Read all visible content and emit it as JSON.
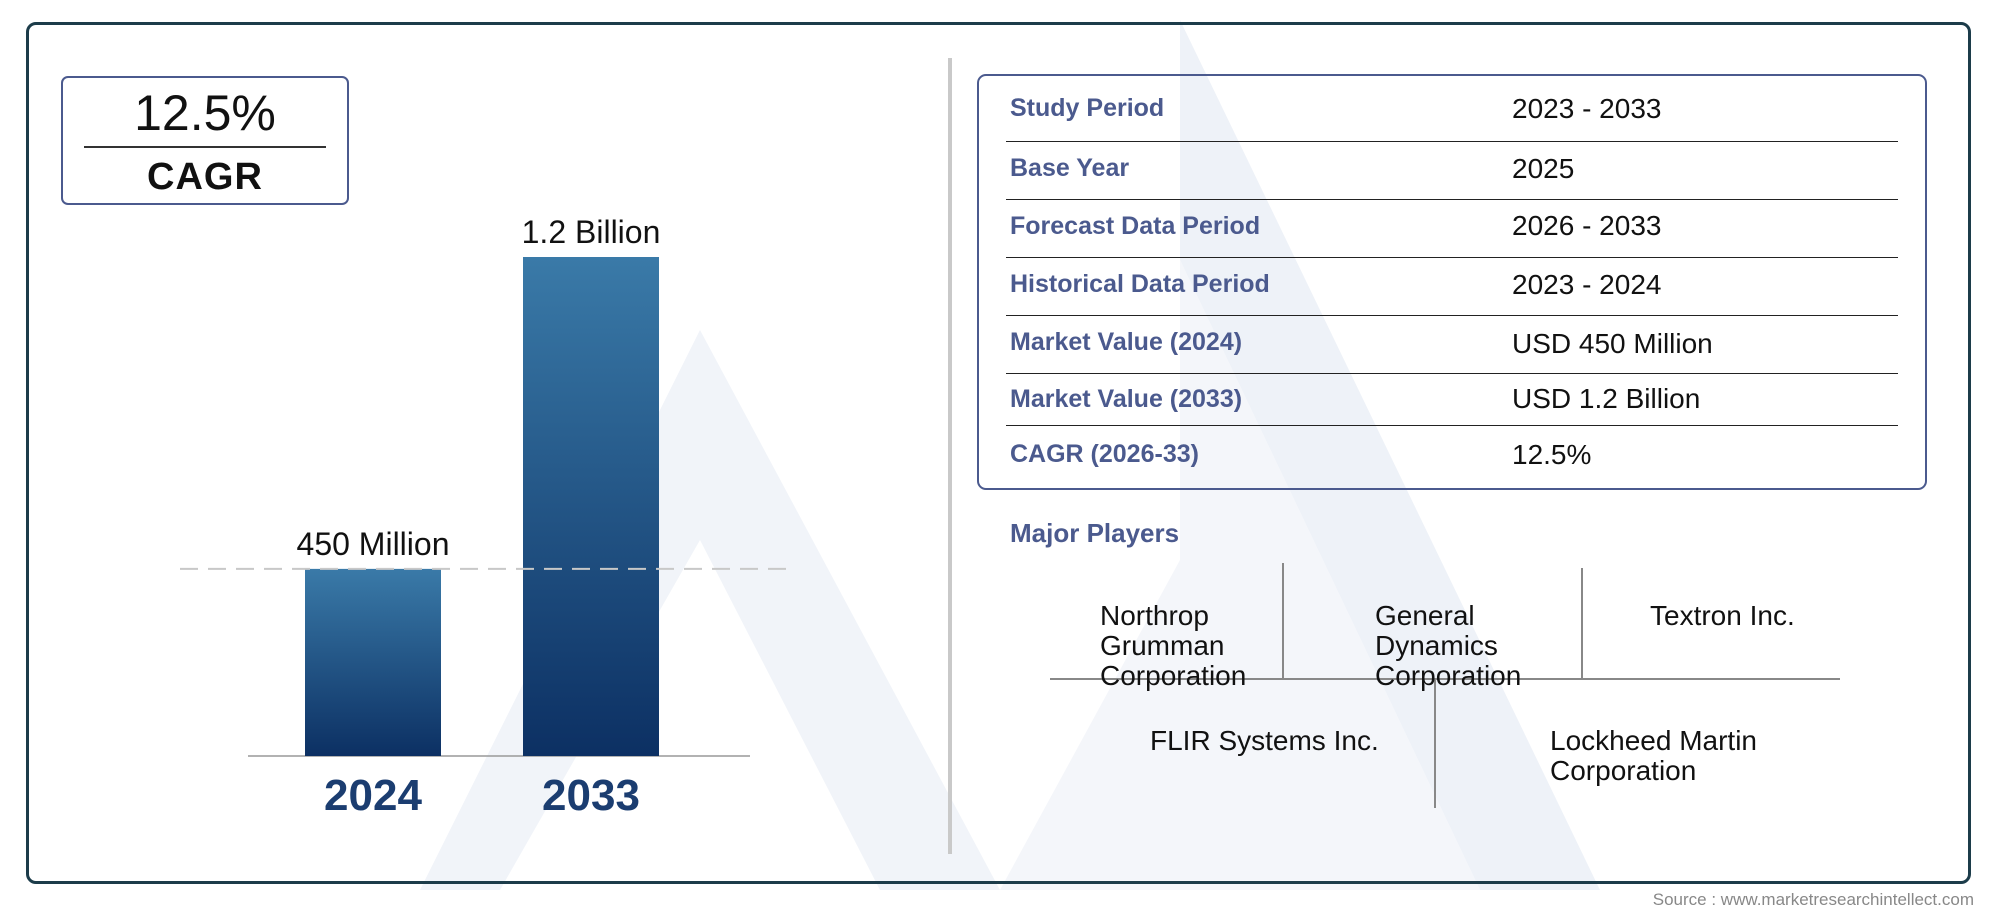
{
  "cagr_box": {
    "value": "12.5%",
    "label": "CAGR"
  },
  "chart_data": {
    "type": "bar",
    "categories": [
      "2024",
      "2033"
    ],
    "values": [
      450,
      1200
    ],
    "value_unit": "Million USD",
    "data_labels": [
      "450 Million",
      "1.2 Billion"
    ],
    "title": "",
    "xlabel": "",
    "ylabel": "",
    "ylim": [
      0,
      1200
    ],
    "grid": false,
    "reference_line": "dashed line at the 2024 value",
    "colors": {
      "bar_top": "#3a7aa8",
      "bar_bottom": "#0c3063",
      "category_label": "#1b3d70"
    }
  },
  "info_table": [
    {
      "label": "Study Period",
      "value": "2023 - 2033"
    },
    {
      "label": "Base Year",
      "value": "2025"
    },
    {
      "label": "Forecast Data Period",
      "value": "2026 - 2033"
    },
    {
      "label": "Historical Data Period",
      "value": "2023 - 2024"
    },
    {
      "label": "Market Value (2024)",
      "value": "USD 450 Million"
    },
    {
      "label": "Market Value (2033)",
      "value": "USD 1.2 Billion"
    },
    {
      "label": "CAGR (2026-33)",
      "value": "12.5%"
    }
  ],
  "players": {
    "title": "Major Players",
    "names": [
      "Northrop Grumman Corporation",
      "General Dynamics Corporation",
      "Textron Inc.",
      "FLIR Systems Inc.",
      "Lockheed Martin Corporation"
    ]
  },
  "source": "Source : www.marketresearchintellect.com",
  "colors": {
    "accent": "#4b5a8e",
    "frame": "#1c3c4a"
  }
}
